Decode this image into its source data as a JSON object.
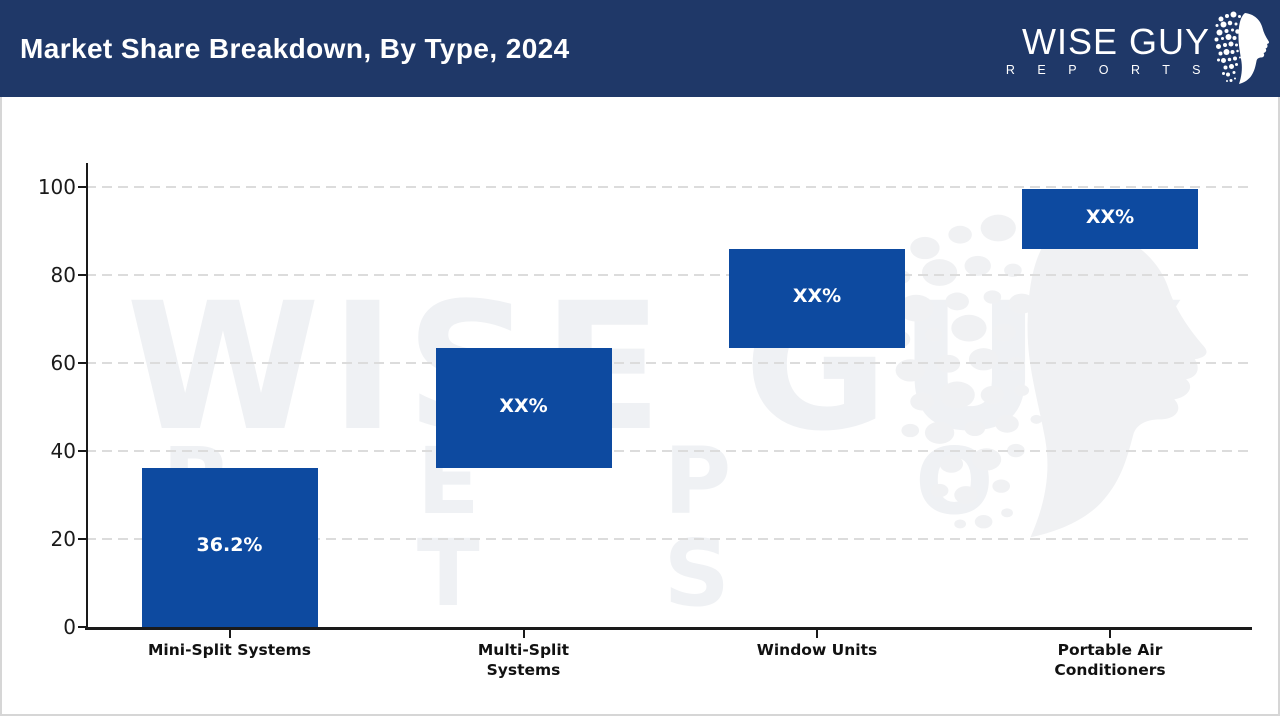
{
  "header": {
    "title": "Market Share Breakdown, By Type, 2024",
    "bg_color": "#1f3868",
    "brand": {
      "line1": "WISE GUY",
      "line2": "R E P O R T S"
    }
  },
  "watermark": {
    "line1": "WISE GUY",
    "line2": "R E P O R T S",
    "color": "#eff1f4"
  },
  "chart_data": {
    "type": "bar",
    "subtype": "waterfall",
    "title": "Market Share Breakdown, By Type, 2024",
    "xlabel": "",
    "ylabel": "",
    "ylim": [
      0,
      100
    ],
    "yticks": [
      "0",
      "20",
      "40",
      "60",
      "80",
      "100"
    ],
    "grid": "horizontal dashed",
    "legend": "none",
    "bars": [
      {
        "category_lines": [
          "Mini-Split Systems"
        ],
        "from": 0,
        "to": 36.2,
        "label": "36.2%"
      },
      {
        "category_lines": [
          "Multi-Split",
          "Systems"
        ],
        "from": 36.2,
        "to": 63.5,
        "label": "XX%"
      },
      {
        "category_lines": [
          "Window Units"
        ],
        "from": 63.5,
        "to": 86.0,
        "label": "XX%"
      },
      {
        "category_lines": [
          "Portable Air",
          "Conditioners"
        ],
        "from": 86.0,
        "to": 99.6,
        "label": "XX%"
      }
    ],
    "style": {
      "bar_color": "#0d4aa0",
      "bar_label_color": "#ffffff",
      "axis_color": "#1a1a1a",
      "grid_color": "#dcdcdc",
      "tick_label_color": "#1a1a1a"
    }
  }
}
